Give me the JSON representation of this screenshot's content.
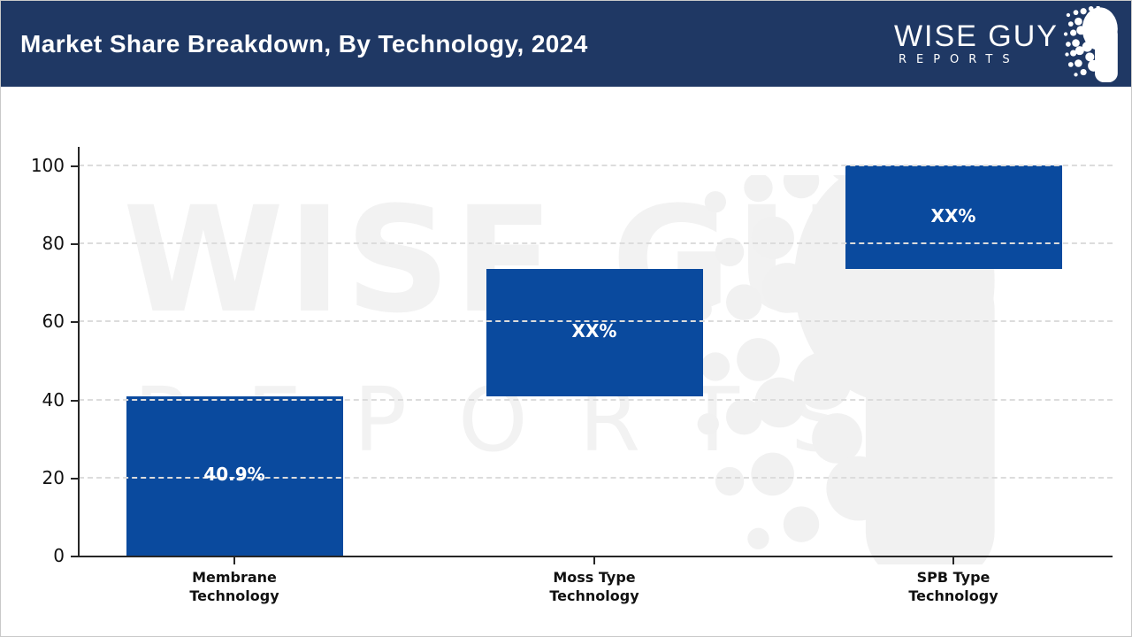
{
  "header": {
    "title": "Market Share Breakdown, By Technology, 2024",
    "logo": {
      "wordmark": "WISE GUY",
      "subtext": "REPORTS",
      "icon": "dotted-head-profile-icon"
    }
  },
  "watermark": {
    "line1": "WISE GUY",
    "line2": "REPORTS",
    "icon": "dotted-head-profile-icon"
  },
  "colors": {
    "header_bg": "#1f3864",
    "bar": "#0a4a9e",
    "grid": "#dcdcdc",
    "axis": "#262626",
    "bar_label": "#ffffff",
    "text": "#111111",
    "watermark": "#f2f2f2",
    "page_border": "#c9c9c9"
  },
  "chart_data": {
    "type": "bar",
    "subtype": "waterfall",
    "title": "Market Share Breakdown, By Technology, 2024",
    "categories": [
      "Membrane Technology",
      "Moss Type Technology",
      "SPB Type Technology"
    ],
    "category_lines": [
      [
        "Membrane",
        "Technology"
      ],
      [
        "Moss Type",
        "Technology"
      ],
      [
        "SPB Type",
        "Technology"
      ]
    ],
    "bars": [
      {
        "category": "Membrane Technology",
        "start": 0,
        "end": 40.9,
        "label": "40.9%"
      },
      {
        "category": "Moss Type Technology",
        "start": 40.9,
        "end": 73.4,
        "label": "XX%"
      },
      {
        "category": "SPB Type Technology",
        "start": 73.4,
        "end": 100,
        "label": "XX%"
      }
    ],
    "y_ticks": [
      0,
      20,
      40,
      60,
      80,
      100
    ],
    "ylim": [
      0,
      105
    ],
    "xlabel": "",
    "ylabel": "",
    "grid": "horizontal-dashed",
    "legend": "none"
  }
}
